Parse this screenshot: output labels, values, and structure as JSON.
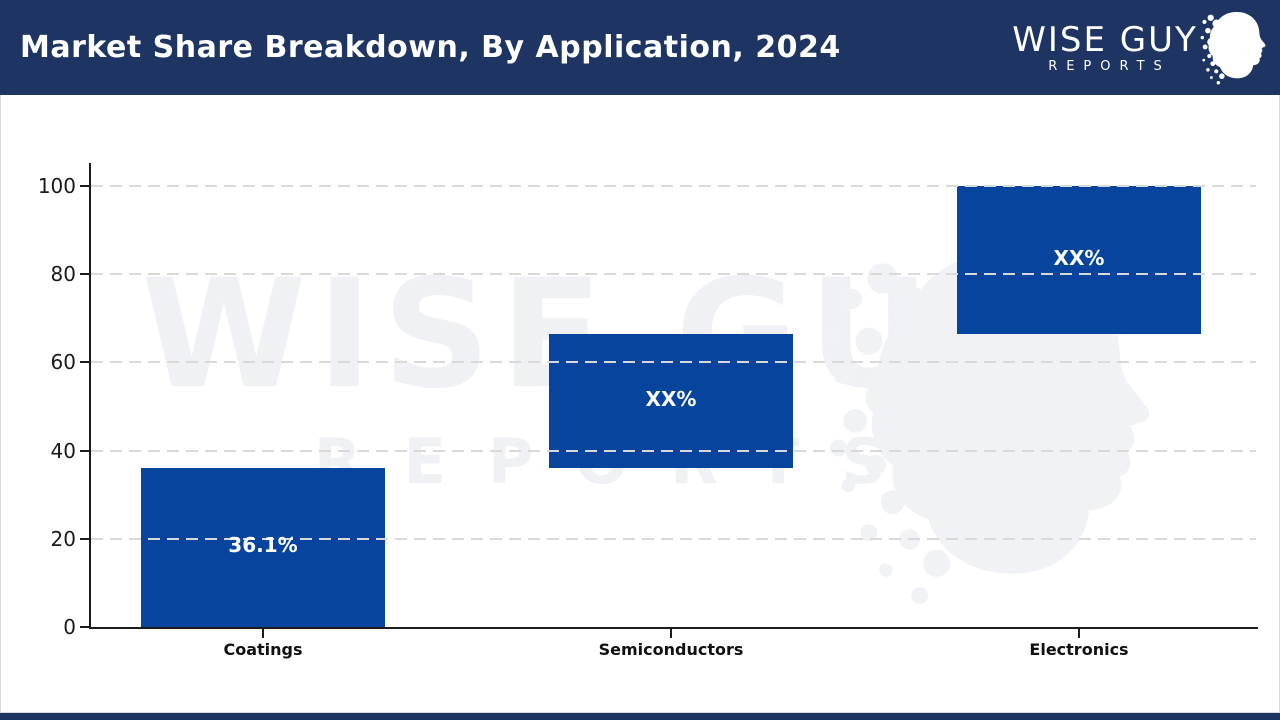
{
  "header": {
    "title": "Market Share Breakdown, By Application, 2024",
    "logo": {
      "line1": "WISE GUY",
      "line2": "REPORTS"
    }
  },
  "watermark": {
    "line1": "WISE GUY",
    "line2": "REPORTS"
  },
  "footer": {},
  "chart_data": {
    "type": "bar",
    "subtype": "waterfall",
    "title": "Market Share Breakdown, By Application, 2024",
    "xlabel": "",
    "ylabel": "",
    "categories": [
      "Coatings",
      "Semiconductors",
      "Electronics"
    ],
    "bars": [
      {
        "category": "Coatings",
        "start": 0,
        "end": 36.1,
        "label": "36.1%"
      },
      {
        "category": "Semiconductors",
        "start": 36.1,
        "end": 66.4,
        "label": "XX%"
      },
      {
        "category": "Electronics",
        "start": 66.4,
        "end": 100,
        "label": "XX%"
      }
    ],
    "yticks": [
      0,
      20,
      40,
      60,
      80,
      100
    ],
    "ylim": [
      0,
      105.2
    ],
    "grid": "dashed-horizontal-above-bars",
    "legend": "none",
    "bar_color": "#06449e"
  },
  "colors": {
    "header_bg": "#1e3564",
    "footer_bg": "#1e3564",
    "bar": "#06449e",
    "gridline": "#d9d9d9",
    "axis": "#1c1c1c",
    "watermark": "#f0f1f4",
    "title_text": "#ffffff",
    "bar_label_text": "#ffffff"
  }
}
